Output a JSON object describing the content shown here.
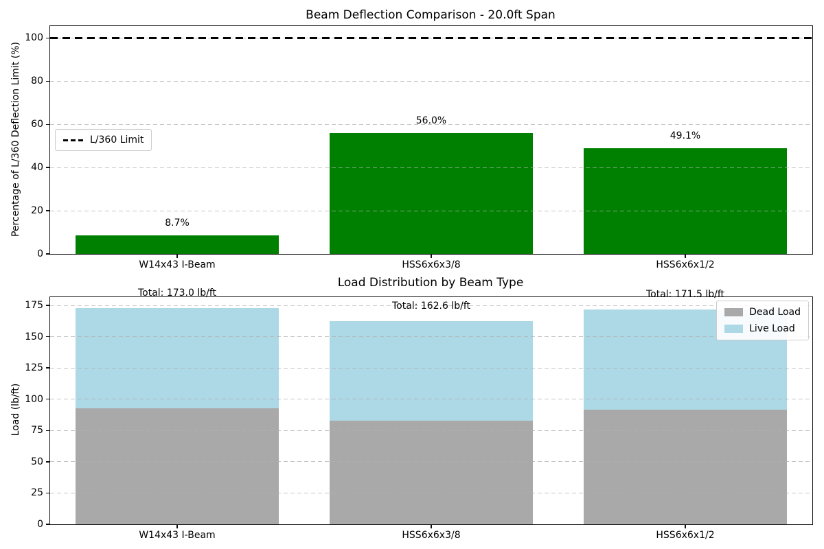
{
  "chart_data": [
    {
      "type": "bar",
      "title": "Beam Deflection Comparison - 20.0ft Span",
      "ylabel": "Percentage of L/360 Deflection Limit (%)",
      "categories": [
        "W14x43 I-Beam",
        "HSS6x6x3/8",
        "HSS6x6x1/2"
      ],
      "values": [
        8.7,
        56.0,
        49.1
      ],
      "value_labels": [
        "8.7%",
        "56.0%",
        "49.1%"
      ],
      "bar_color": "#008000",
      "yticks": [
        0,
        20,
        40,
        60,
        80,
        100
      ],
      "ylim": [
        0,
        105.5
      ],
      "grid": true,
      "grid_style": "dashed",
      "reference_line": {
        "value": 100,
        "label": "L/360 Limit",
        "color": "#000000",
        "style": "dashed"
      },
      "legend": {
        "position": "center-left",
        "label": "L/360 Limit"
      }
    },
    {
      "type": "stacked-bar",
      "title": "Load Distribution by Beam Type",
      "ylabel": "Load (lb/ft)",
      "categories": [
        "W14x43 I-Beam",
        "HSS6x6x3/8",
        "HSS6x6x1/2"
      ],
      "series": [
        {
          "name": "Dead Load",
          "color": "#a9a9a9",
          "values": [
            93.0,
            82.6,
            91.5
          ]
        },
        {
          "name": "Live Load",
          "color": "#add8e6",
          "values": [
            80.0,
            80.0,
            80.0
          ]
        }
      ],
      "totals": [
        173.0,
        162.6,
        171.5
      ],
      "total_labels": [
        "Total: 173.0 lb/ft",
        "Total: 162.6 lb/ft",
        "Total: 171.5 lb/ft"
      ],
      "yticks": [
        0,
        25,
        50,
        75,
        100,
        125,
        150,
        175
      ],
      "ylim": [
        0,
        181.6
      ],
      "grid": true,
      "grid_style": "dashed",
      "legend": {
        "position": "top-right",
        "entries": [
          {
            "label": "Dead Load",
            "color": "#a9a9a9"
          },
          {
            "label": "Live Load",
            "color": "#add8e6"
          }
        ]
      }
    }
  ]
}
